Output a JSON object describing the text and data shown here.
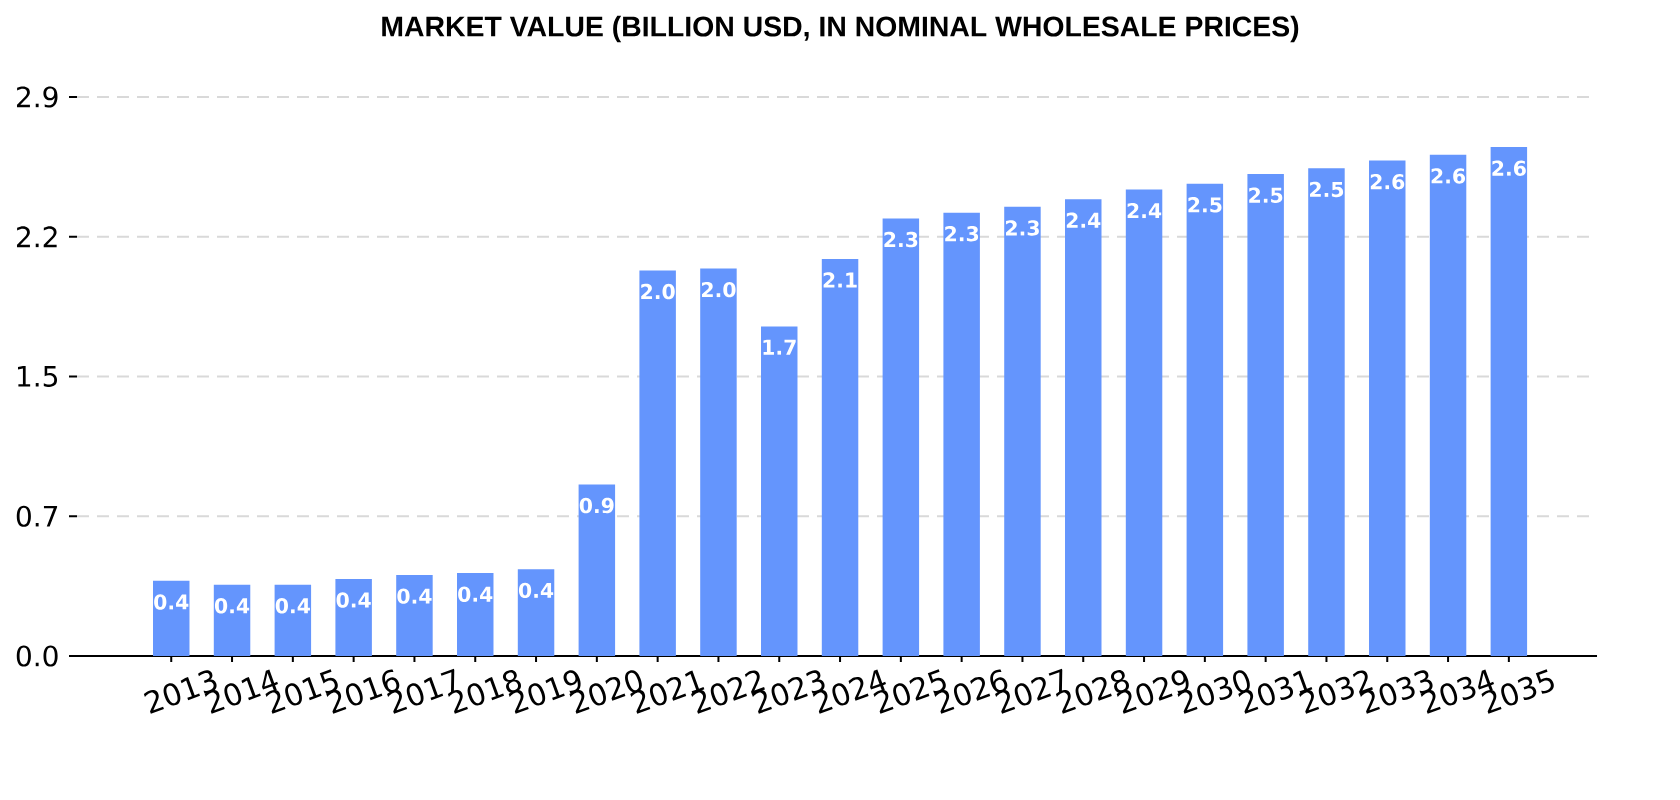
{
  "chart_data": {
    "type": "bar",
    "title": "MARKET VALUE (BILLION USD, IN NOMINAL WHOLESALE PRICES)",
    "categories": [
      "2013",
      "2014",
      "2015",
      "2016",
      "2017",
      "2018",
      "2019",
      "2020",
      "2021",
      "2022",
      "2023",
      "2024",
      "2025",
      "2026",
      "2027",
      "2028",
      "2029",
      "2030",
      "2031",
      "2032",
      "2033",
      "2034",
      "2035"
    ],
    "values": [
      0.39,
      0.37,
      0.37,
      0.4,
      0.42,
      0.43,
      0.45,
      0.89,
      2.0,
      2.01,
      1.71,
      2.06,
      2.27,
      2.3,
      2.33,
      2.37,
      2.42,
      2.45,
      2.5,
      2.53,
      2.57,
      2.6,
      2.64
    ],
    "value_labels": [
      "0.4",
      "0.4",
      "0.4",
      "0.4",
      "0.4",
      "0.4",
      "0.4",
      "0.9",
      "2.0",
      "2.0",
      "1.7",
      "2.1",
      "2.3",
      "2.3",
      "2.3",
      "2.4",
      "2.4",
      "2.5",
      "2.5",
      "2.5",
      "2.6",
      "2.6",
      "2.6"
    ],
    "color": "#6495fd",
    "ylim": [
      0,
      2.9
    ],
    "yticks": [
      {
        "value": 0,
        "label": "0.0"
      },
      {
        "value": 0.725,
        "label": "0.7"
      },
      {
        "value": 1.45,
        "label": "1.5"
      },
      {
        "value": 2.175,
        "label": "2.2"
      },
      2.9
    ],
    "grid": "y"
  }
}
